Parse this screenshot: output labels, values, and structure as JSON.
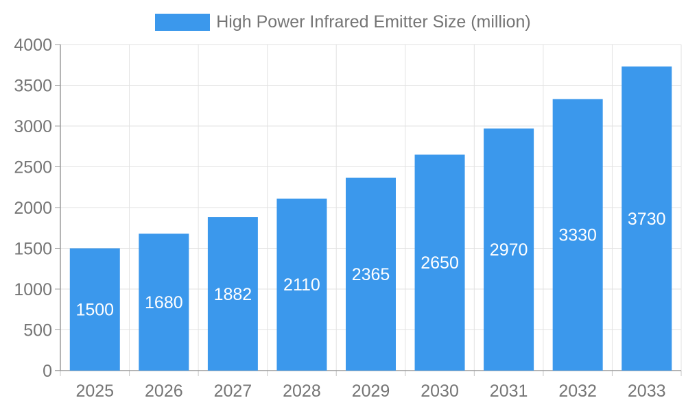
{
  "chart_data": {
    "type": "bar",
    "title": "High Power Infrared Emitter Size (million)",
    "categories": [
      "2025",
      "2026",
      "2027",
      "2028",
      "2029",
      "2030",
      "2031",
      "2032",
      "2033"
    ],
    "values": [
      1500,
      1680,
      1882,
      2110,
      2365,
      2650,
      2970,
      3330,
      3730
    ],
    "xlabel": "",
    "ylabel": "",
    "ylim": [
      0,
      4000
    ],
    "yticks": [
      0,
      500,
      1000,
      1500,
      2000,
      2500,
      3000,
      3500,
      4000
    ],
    "grid": true,
    "legend_position": "top-center",
    "bar_label_position": "inside-center"
  },
  "colors": {
    "bar": "#3B98EC",
    "bar_label": "#FFFFFF",
    "grid_line": "#E2E2E2",
    "axis_line": "#9B9B9B",
    "tick": "#C4C4C4",
    "axis_label": "#757575",
    "legend_text": "#757575",
    "background": "#FFFFFF"
  }
}
